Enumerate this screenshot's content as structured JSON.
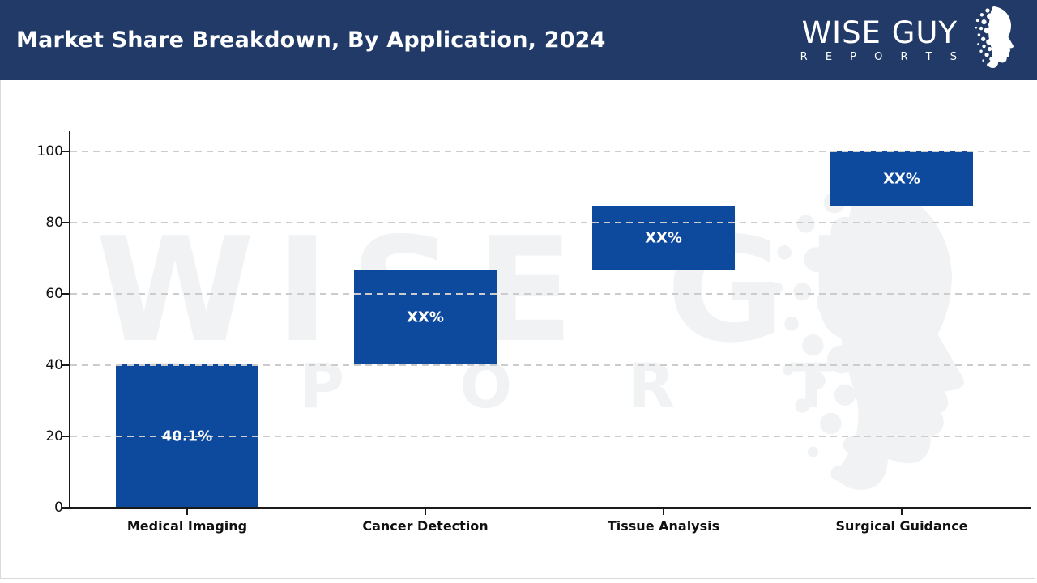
{
  "header": {
    "title": "Market Share Breakdown, By Application, 2024",
    "logo": {
      "line1": "WISE GUY",
      "line2": "R E P O R T S"
    }
  },
  "watermark": {
    "line1": "WISE GU",
    "line2": "E P O R T"
  },
  "colors": {
    "header_bg": "#213A67",
    "bar": "#0D4A9E",
    "grid": "#cccccc",
    "axis": "#1a1a1a",
    "watermark": "#f1f2f4",
    "title_text": "#ffffff",
    "bar_label_text": "#ffffff"
  },
  "chart_data": {
    "type": "bar",
    "subtype": "waterfall",
    "title": "Market Share Breakdown, By Application, 2024",
    "categories": [
      "Medical Imaging",
      "Cancer Detection",
      "Tissue Analysis",
      "Surgical Guidance"
    ],
    "segments": [
      {
        "category": "Medical Imaging",
        "start": 0,
        "end": 40.1,
        "label": "40.1%"
      },
      {
        "category": "Cancer Detection",
        "start": 40.1,
        "end": 66.8,
        "label": "XX%"
      },
      {
        "category": "Tissue Analysis",
        "start": 66.8,
        "end": 84.5,
        "label": "XX%"
      },
      {
        "category": "Surgical Guidance",
        "start": 84.5,
        "end": 100,
        "label": "XX%"
      }
    ],
    "ylim": [
      0,
      100
    ],
    "yticks": [
      0,
      20,
      40,
      60,
      80,
      100
    ],
    "xlabel": "",
    "ylabel": "",
    "grid": "horizontal-dashed",
    "legend": null,
    "bar_color": "#0D4A9E",
    "value_label_color": "#ffffff"
  }
}
